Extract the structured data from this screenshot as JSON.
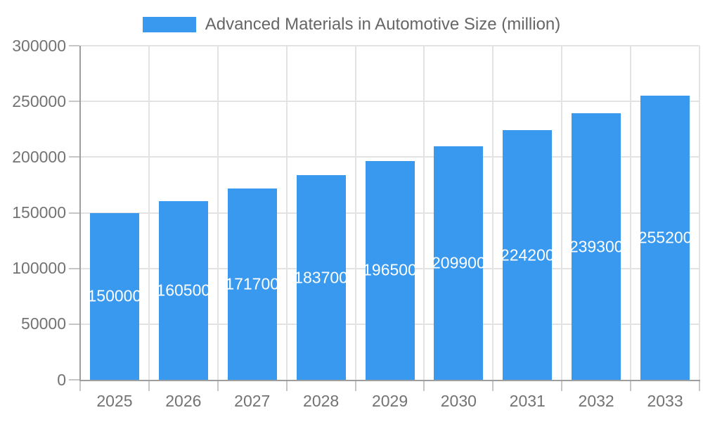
{
  "legend": {
    "label": "Advanced Materials in Automotive Size (million)"
  },
  "colors": {
    "bar": "#3899ee",
    "grid": "#e3e3e3",
    "axis": "#9e9e9e",
    "tick": "#c6c6c6",
    "tick_text": "#737373",
    "title_text": "#666666",
    "bar_label": "#ffffff",
    "background": "#ffffff"
  },
  "chart_data": {
    "type": "bar",
    "title": "Advanced Materials in Automotive Size (million)",
    "categories": [
      "2025",
      "2026",
      "2027",
      "2028",
      "2029",
      "2030",
      "2031",
      "2032",
      "2033"
    ],
    "values": [
      150000,
      160500,
      171700,
      183700,
      196500,
      209900,
      224200,
      239300,
      255200
    ],
    "bar_labels": [
      "150000",
      "160500",
      "171700",
      "183700",
      "196500",
      "209900",
      "224200",
      "239300",
      "255200"
    ],
    "xlabel": "",
    "ylabel": "",
    "ylim": [
      0,
      300000
    ],
    "ytick_step": 50000,
    "ytick_labels": [
      "300000",
      "250000",
      "200000",
      "150000",
      "100000",
      "50000",
      "0"
    ],
    "grid": true,
    "legend_position": "top",
    "bar_label_position": "center"
  }
}
